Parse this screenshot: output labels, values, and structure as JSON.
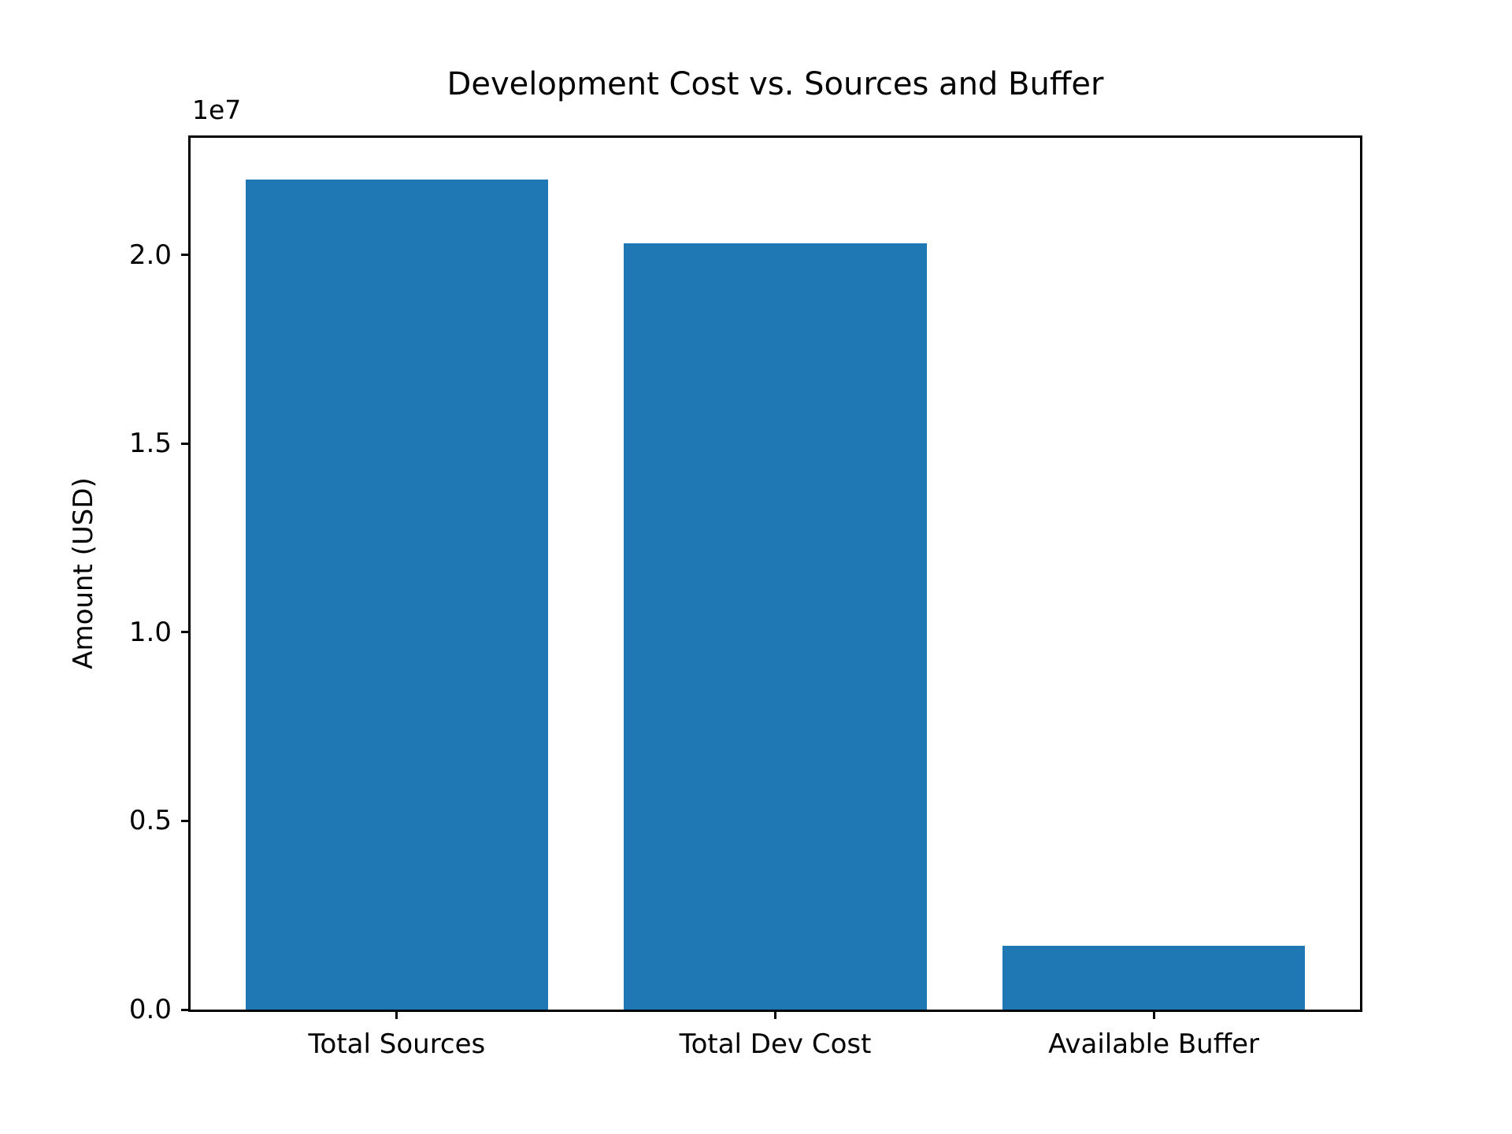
{
  "chart_data": {
    "type": "bar",
    "title": "Development Cost vs. Sources and Buffer",
    "xlabel": "",
    "ylabel": "Amount (USD)",
    "y_offset_label": "1e7",
    "categories": [
      "Total Sources",
      "Total Dev Cost",
      "Available Buffer"
    ],
    "values": [
      22000000,
      20300000,
      1700000
    ],
    "bar_color": "#1f77b4",
    "grid": false,
    "legend_position": "none",
    "ylim": [
      0,
      23100000
    ],
    "xlim": [
      -0.545,
      2.545
    ],
    "bar_width": 0.8,
    "yticks": [
      {
        "value": 0,
        "label": "0.0"
      },
      {
        "value": 5000000,
        "label": "0.5"
      },
      {
        "value": 10000000,
        "label": "1.0"
      },
      {
        "value": 15000000,
        "label": "1.5"
      },
      {
        "value": 20000000,
        "label": "2.0"
      }
    ]
  }
}
